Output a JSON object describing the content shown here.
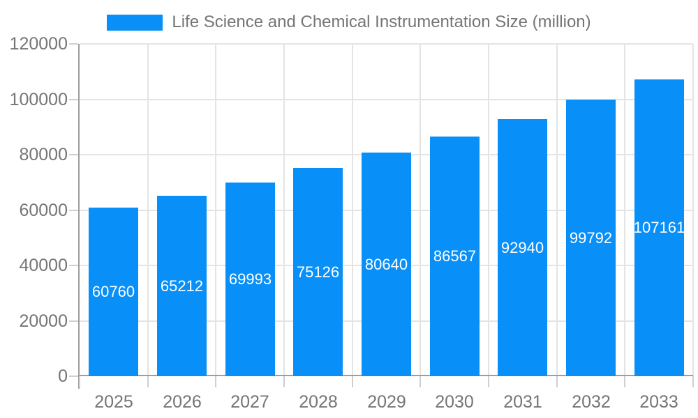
{
  "chart_data": {
    "type": "bar",
    "title": "Life Science and Chemical Instrumentation Size (million)",
    "categories": [
      "2025",
      "2026",
      "2027",
      "2028",
      "2029",
      "2030",
      "2031",
      "2032",
      "2033"
    ],
    "values": [
      60760,
      65212,
      69993,
      75126,
      80640,
      86567,
      92940,
      99792,
      107161
    ],
    "xlabel": "",
    "ylabel": "",
    "ylim": [
      0,
      120000
    ],
    "ytick_step": 20000,
    "y_tick_labels": [
      "0",
      "20000",
      "40000",
      "60000",
      "80000",
      "100000",
      "120000"
    ],
    "grid": true,
    "legend_position": "top",
    "data_labels_visible": true
  },
  "legend": {
    "swatch_icon": "blue-rect-swatch",
    "label": "Life Science and Chemical Instrumentation Size (million)"
  },
  "colors": {
    "bar": "#0890F8",
    "grid": "#E4E4E4",
    "axis_line": "#9E9E9E",
    "tick": "#CFCFCF",
    "axis_text": "#757575",
    "data_label": "#FFFFFF",
    "background": "#FFFFFF"
  }
}
